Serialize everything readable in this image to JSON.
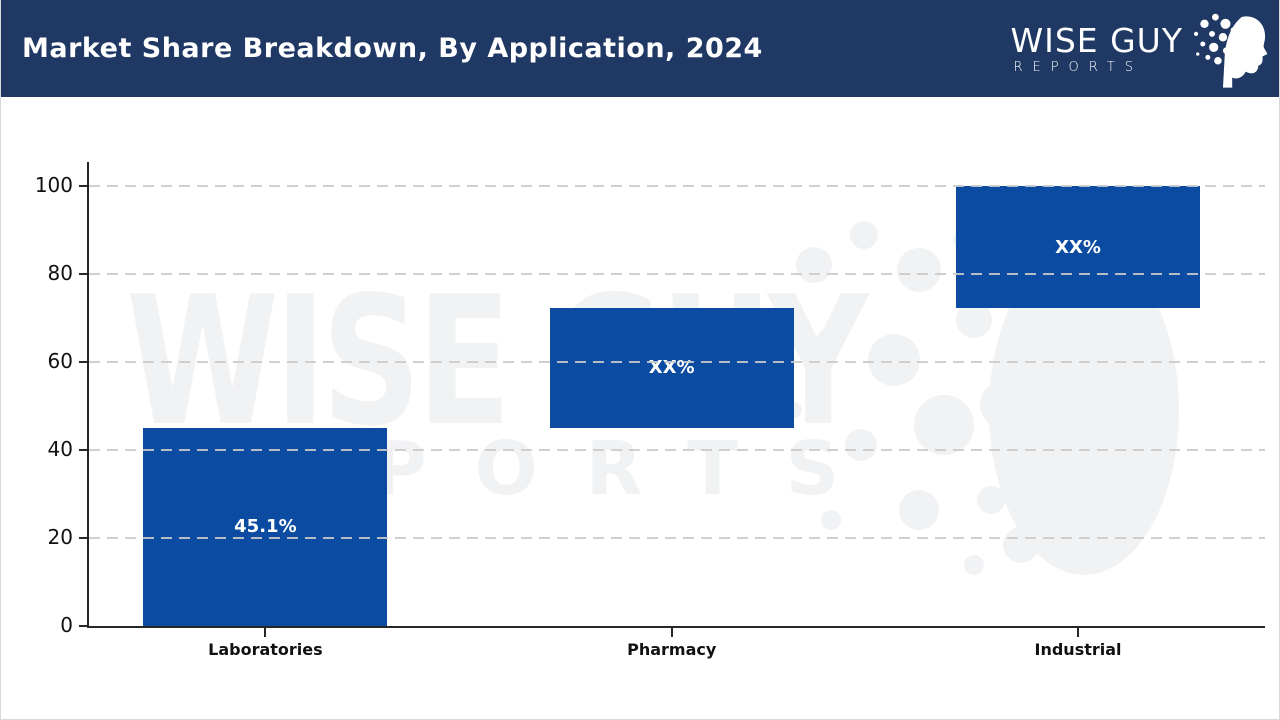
{
  "header": {
    "title": "Market Share Breakdown, By Application, 2024",
    "bg_color": "#1f3864",
    "logo": {
      "line1": "WISE GUY",
      "line2": "REPORTS"
    }
  },
  "watermark": {
    "line1": "WISE GUY",
    "line2": "REPORTS"
  },
  "chart_data": {
    "type": "bar",
    "subtype": "waterfall-stacked",
    "title": "Market Share Breakdown, By Application, 2024",
    "categories": [
      "Laboratories",
      "Pharmacy",
      "Industrial"
    ],
    "segments": [
      {
        "category": "Laboratories",
        "start": 0,
        "end": 45.1,
        "label": "45.1%"
      },
      {
        "category": "Pharmacy",
        "start": 45.1,
        "end": 72.4,
        "label": "XX%"
      },
      {
        "category": "Industrial",
        "start": 72.4,
        "end": 100,
        "label": "XX%"
      }
    ],
    "yticks": [
      0,
      20,
      40,
      60,
      80,
      100
    ],
    "ylim": [
      0,
      106
    ],
    "xlabel": "",
    "ylabel": "",
    "grid": "horizontal-dashed",
    "legend": "none",
    "bar_color": "#0b4ca2",
    "bar_label_color": "#ffffff",
    "axis_color": "#262626",
    "grid_color": "#cbcbcb"
  }
}
